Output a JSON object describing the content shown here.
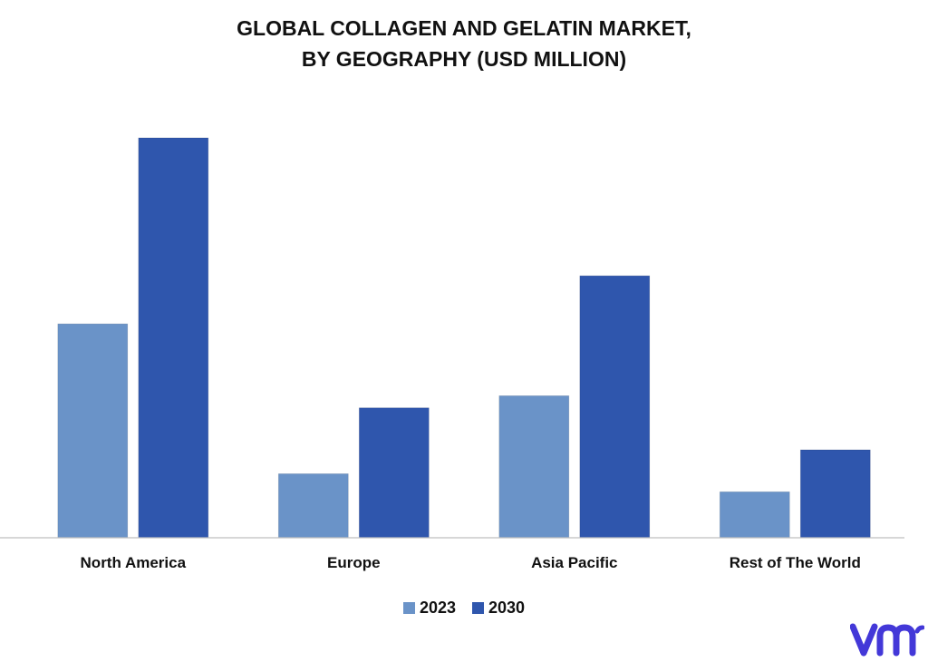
{
  "chart_data": {
    "type": "bar",
    "title_lines": [
      "GLOBAL COLLAGEN AND GELATIN MARKET,",
      "BY GEOGRAPHY (USD MILLION)"
    ],
    "categories": [
      "North America",
      "Europe",
      "Asia Pacific",
      "Rest of The World"
    ],
    "series": [
      {
        "name": "2023",
        "color": "#6a93c8",
        "values": [
          53.5,
          16,
          35.5,
          11.5
        ]
      },
      {
        "name": "2030",
        "color": "#2f56ad",
        "values": [
          100,
          32.5,
          65.5,
          22
        ]
      }
    ],
    "ylim": [
      0,
      100
    ],
    "grid": false,
    "legend_position": "bottom-center"
  },
  "logo": {
    "icon": "vmr-logo-icon",
    "color": "#4338d8"
  }
}
